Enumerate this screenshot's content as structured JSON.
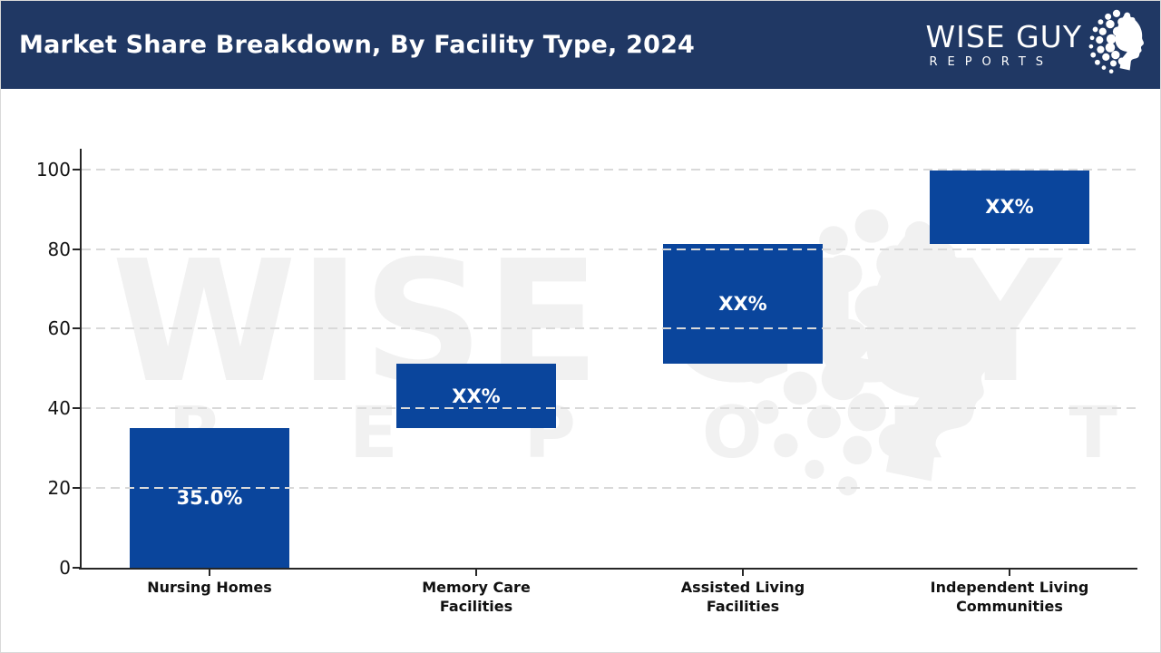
{
  "header": {
    "title": "Market Share Breakdown, By Facility Type, 2024",
    "logo": {
      "primary": "WISE GUY",
      "secondary": "REPORTS"
    }
  },
  "watermark": {
    "primary": "WISE GUY",
    "secondary": "R E P O R T S"
  },
  "chart_data": {
    "type": "bar",
    "variant": "waterfall",
    "title": "Market Share Breakdown, By Facility Type, 2024",
    "categories": [
      {
        "lines": [
          "Nursing Homes"
        ]
      },
      {
        "lines": [
          "Memory Care",
          "Facilities"
        ]
      },
      {
        "lines": [
          "Assisted Living",
          "Facilities"
        ]
      },
      {
        "lines": [
          "Independent Living",
          "Communities"
        ]
      }
    ],
    "segments": [
      {
        "category": "Nursing Homes",
        "start": 0,
        "end": 35.0,
        "label": "35.0%"
      },
      {
        "category": "Memory Care Facilities",
        "start": 35.0,
        "end": 51.2,
        "label": "XX%"
      },
      {
        "category": "Assisted Living Facilities",
        "start": 51.2,
        "end": 81.3,
        "label": "XX%"
      },
      {
        "category": "Independent Living Communities",
        "start": 81.3,
        "end": 99.8,
        "label": "XX%"
      }
    ],
    "yticks": [
      0,
      20,
      40,
      60,
      80,
      100
    ],
    "ylim": [
      0,
      105
    ],
    "xlabel": "",
    "ylabel": "",
    "legend": "none",
    "grid": "horizontal-dashed",
    "colors": {
      "bar": "#0a459c",
      "grid": "#d9d9d9",
      "axis": "#262626",
      "bar_label": "#ffffff",
      "header_bg": "#203864",
      "watermark": "#f1f1f1"
    }
  }
}
